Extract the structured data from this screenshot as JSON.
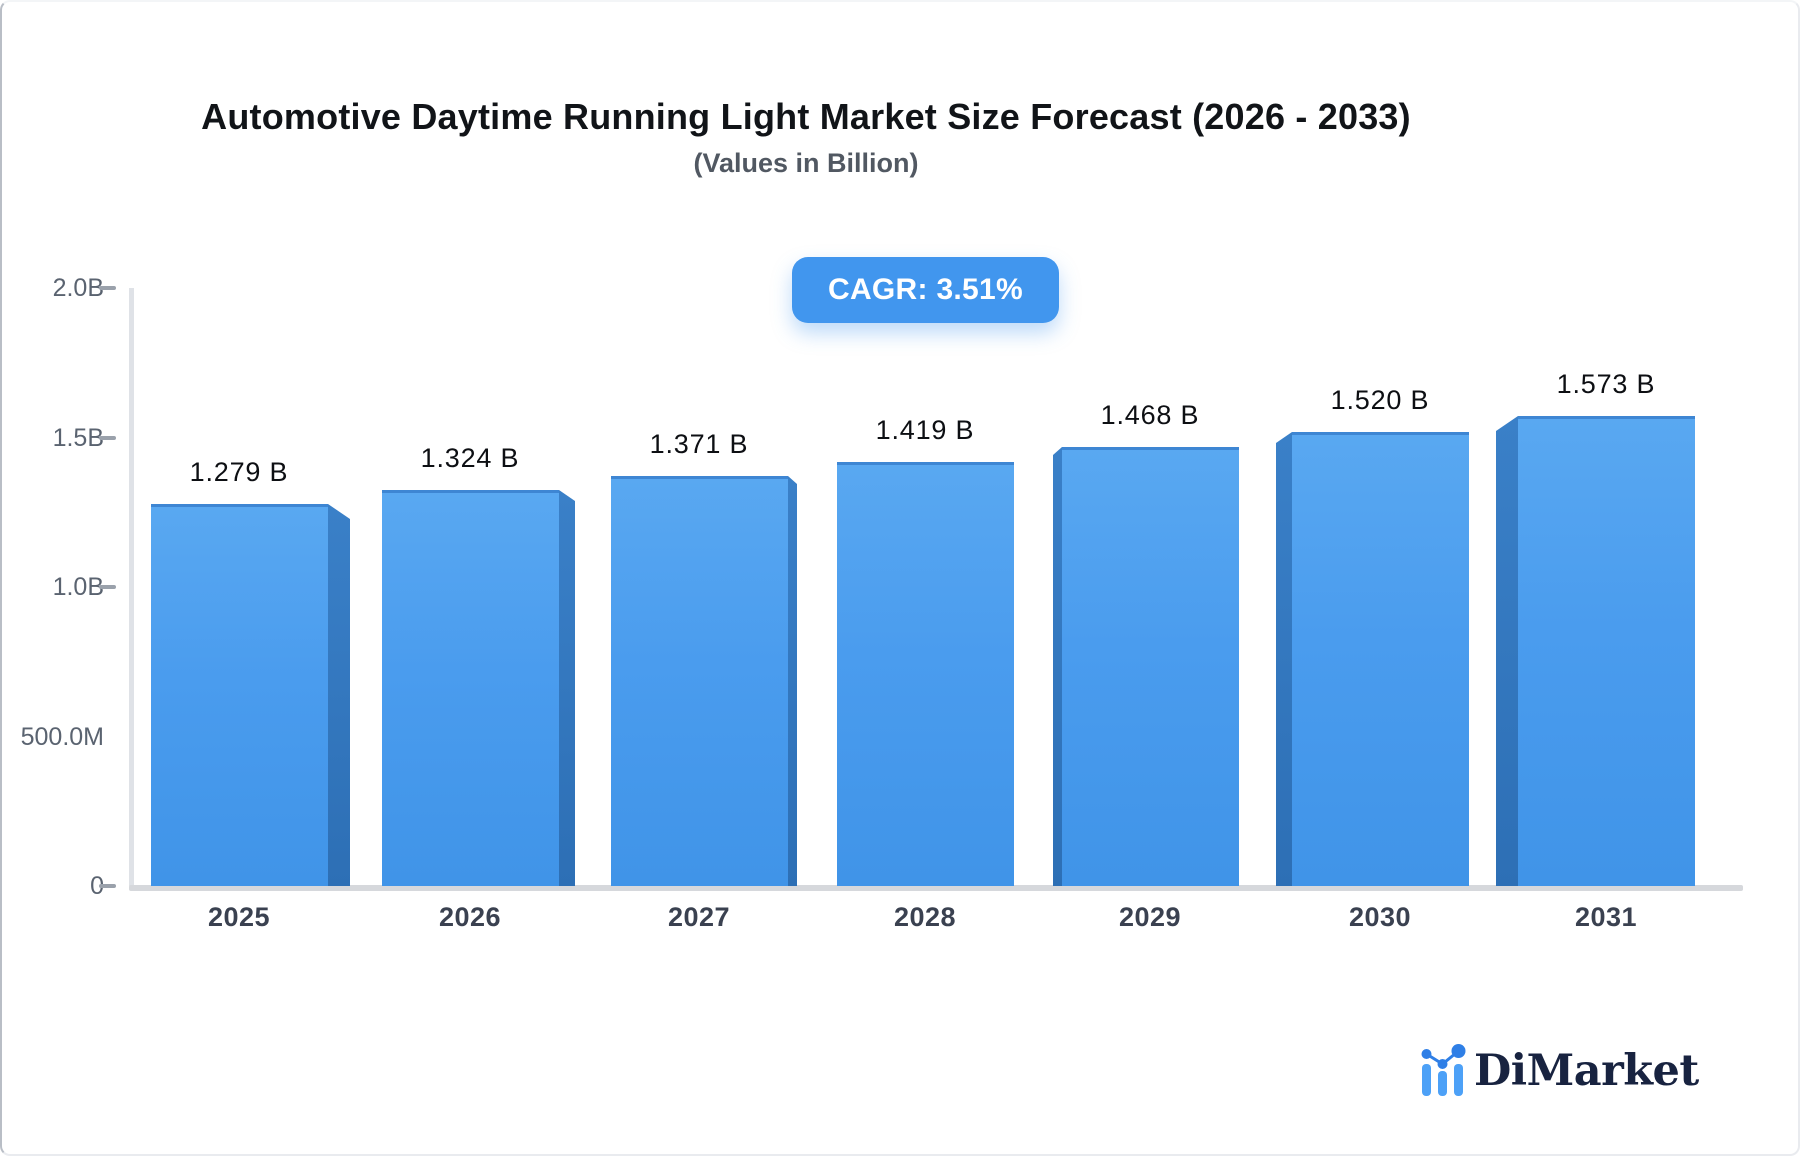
{
  "header": {
    "title": "Automotive Daytime Running Light Market Size Forecast (2026 - 2033)",
    "subtitle": "(Values in Billion)",
    "cagr_label": "CAGR: 3.51%"
  },
  "colors": {
    "bar_front_top": "#59a8f1",
    "bar_front_bottom": "#4094e8",
    "bar_side": "#2f74bd",
    "bar_top_edge": "#3e86d3",
    "badge_background": "#4196ee",
    "axis_line": "#dfe2e7",
    "baseline": "#d6d8dc",
    "tick_dash": "#9aa1ab",
    "y_label_text": "#5a6370",
    "x_label_text": "#3a4150",
    "value_label_text": "#0d0f13",
    "logo_navy": "#182340",
    "logo_light_blue": "#4da1f7",
    "logo_dark_blue": "#2f7fe6"
  },
  "chart_data": {
    "type": "bar",
    "title": "Automotive Daytime Running Light Market Size Forecast (2026 - 2033)",
    "subtitle": "(Values in Billion)",
    "annotation": "CAGR: 3.51%",
    "categories": [
      "2025",
      "2026",
      "2027",
      "2028",
      "2029",
      "2030",
      "2031"
    ],
    "values": [
      1.279,
      1.324,
      1.371,
      1.419,
      1.468,
      1.52,
      1.573
    ],
    "value_labels": [
      "1.279 B",
      "1.324 B",
      "1.371 B",
      "1.419 B",
      "1.468 B",
      "1.520 B",
      "1.573 B"
    ],
    "unit": "Billion",
    "xlabel": "",
    "ylabel": "",
    "ylim": [
      0,
      2.0
    ],
    "y_ticks": [
      {
        "value": 2.0,
        "label": "2.0B",
        "dash": true
      },
      {
        "value": 1.5,
        "label": "1.5B",
        "dash": true
      },
      {
        "value": 1.0,
        "label": "1.0B",
        "dash": true
      },
      {
        "value": 0.5,
        "label": "500.0M",
        "dash": false
      },
      {
        "value": 0.0,
        "label": "0",
        "dash": true
      }
    ],
    "grid": false,
    "legend": false,
    "style": "3d-column-central-perspective"
  },
  "logo": {
    "text": "DiMarket",
    "icon": "mini-bar-chart-with-trend-dots"
  }
}
